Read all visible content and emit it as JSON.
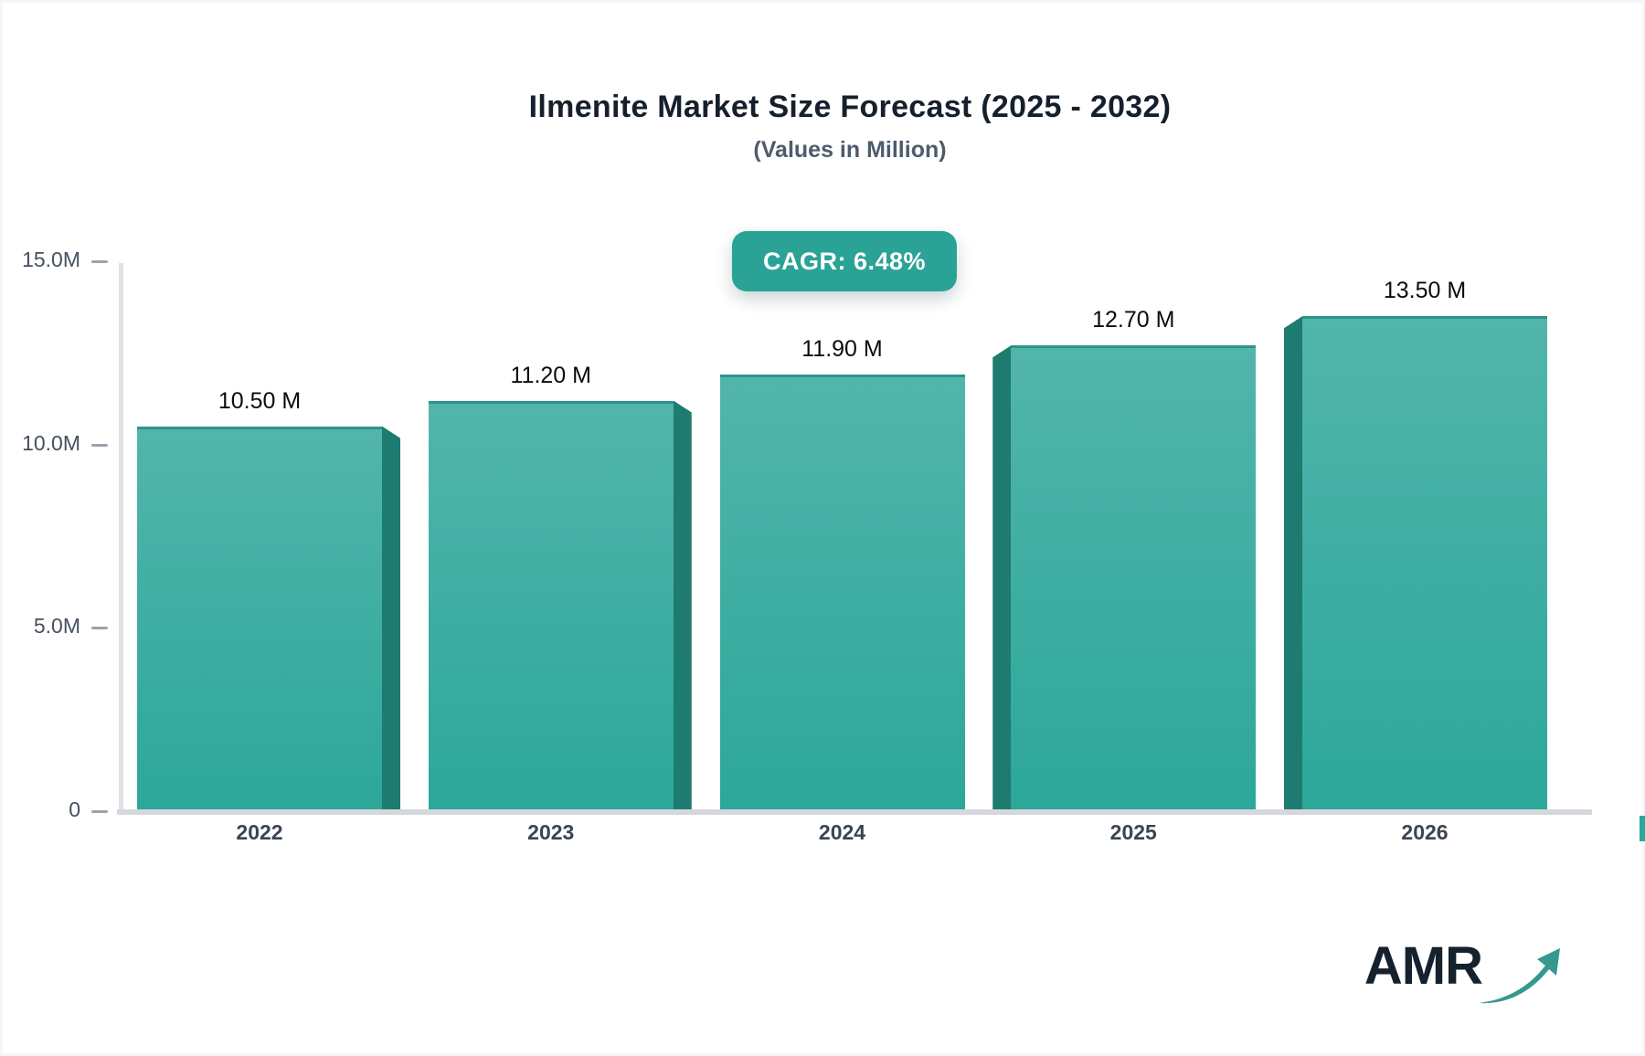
{
  "header": {
    "title": "Ilmenite Market Size Forecast (2025 - 2032)",
    "subtitle": "(Values in Million)"
  },
  "badge": {
    "label": "CAGR: 6.48%",
    "bg": "#2aa396",
    "text_color": "#ffffff"
  },
  "chart_data": {
    "type": "bar",
    "title": "Ilmenite Market Size Forecast (2025 - 2032)",
    "subtitle": "(Values in Million)",
    "categories": [
      "2022",
      "2023",
      "2024",
      "2025",
      "2026"
    ],
    "values": [
      10.5,
      11.2,
      11.9,
      12.7,
      13.5
    ],
    "value_labels": [
      "10.50 M",
      "11.20 M",
      "11.90 M",
      "12.70 M",
      "13.50 M"
    ],
    "xlabel": "",
    "ylabel": "",
    "ylim": [
      0,
      15
    ],
    "ytick_values": [
      15,
      10,
      5,
      0
    ],
    "ytick_labels": [
      "15.0M",
      "10.0M",
      "5.0M",
      "0"
    ],
    "grid": false,
    "legend": false,
    "bar_3d_side": [
      "right",
      "right",
      "none",
      "left",
      "left"
    ],
    "colors": {
      "bar_gradient_top": "#52b5ab",
      "bar_gradient_bottom": "#2ca79a",
      "bar_top_edge": "#2d9489",
      "bar_side_flap": "#1e7b70",
      "axis_line": "#dfe3e8",
      "baseline": "#d4d8dd",
      "tick_text": "#46505e",
      "category_text": "#3a4552",
      "value_text": "#0b0b0b"
    }
  },
  "logo": {
    "text": "AMR",
    "color": "#15222e",
    "arrow_color": "#37988e"
  }
}
